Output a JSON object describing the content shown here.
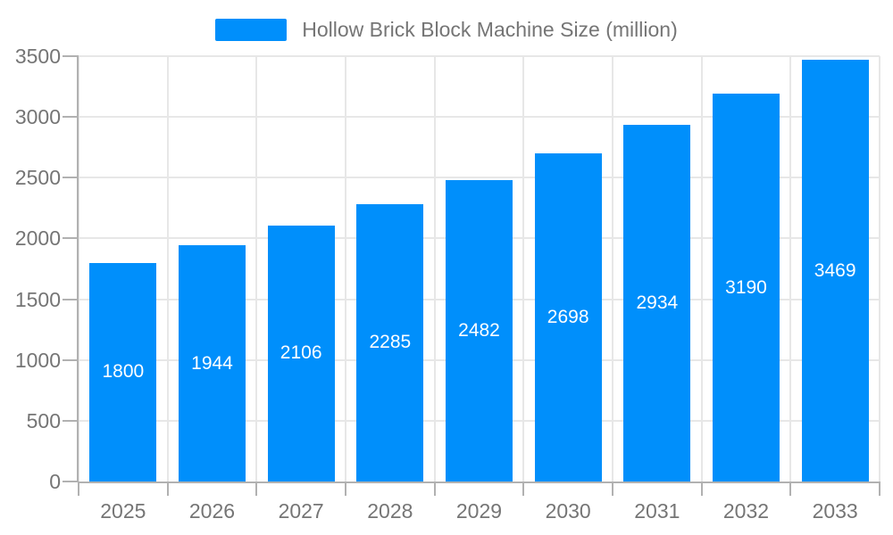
{
  "colors": {
    "bar": "#008FFB",
    "value_label": "#ffffff",
    "axis_text": "#757575",
    "legend_text": "#757575",
    "gridline": "#e7e7e7",
    "axis_line": "#b1b1b1",
    "background": "#ffffff"
  },
  "legend": {
    "label": "Hollow Brick Block Machine Size (million)"
  },
  "chart_data": {
    "type": "bar",
    "title": "Hollow Brick Block Machine Size (million)",
    "categories": [
      "2025",
      "2026",
      "2027",
      "2028",
      "2029",
      "2030",
      "2031",
      "2032",
      "2033"
    ],
    "series": [
      {
        "name": "Hollow Brick Block Machine Size (million)",
        "values": [
          1800,
          1944,
          2106,
          2285,
          2482,
          2698,
          2934,
          3190,
          3469
        ]
      }
    ],
    "xlabel": "",
    "ylabel": "",
    "ylim": [
      0,
      3500
    ],
    "y_ticks": [
      0,
      500,
      1000,
      1500,
      2000,
      2500,
      3000,
      3500
    ],
    "grid": true,
    "legend_position": "top",
    "bar_labels_shown": true
  }
}
